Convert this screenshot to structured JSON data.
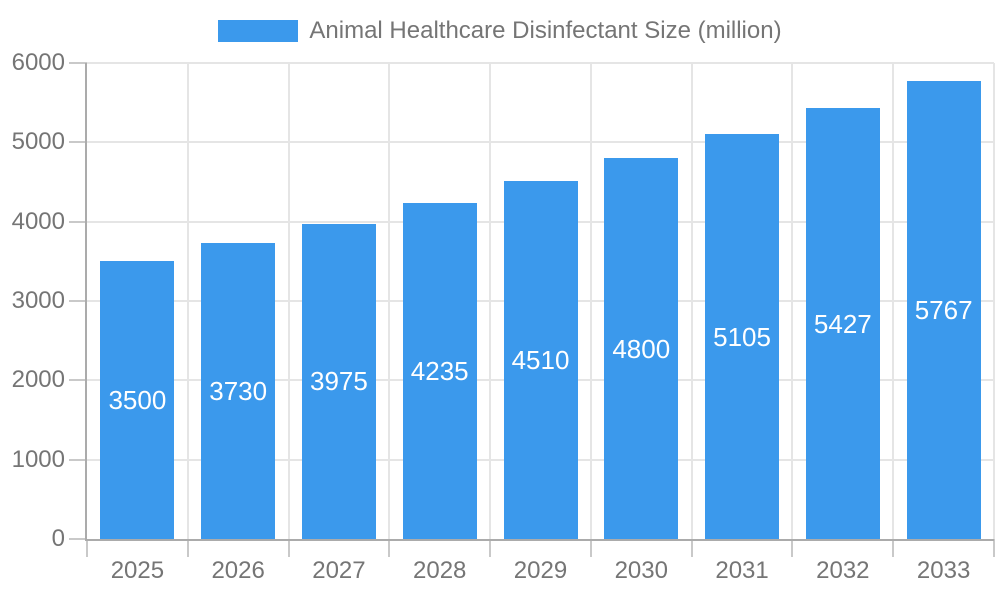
{
  "chart_data": {
    "type": "bar",
    "title": "Animal Healthcare Disinfectant Size (million)",
    "categories": [
      "2025",
      "2026",
      "2027",
      "2028",
      "2029",
      "2030",
      "2031",
      "2032",
      "2033"
    ],
    "values": [
      3500,
      3730,
      3975,
      4235,
      4510,
      4800,
      5105,
      5427,
      5767
    ],
    "xlabel": "",
    "ylabel": "",
    "ylim": [
      0,
      6000
    ],
    "yticks": [
      0,
      1000,
      2000,
      3000,
      4000,
      5000,
      6000
    ],
    "grid": true,
    "legend_position": "top",
    "value_labels": "inside-center",
    "colors": {
      "bar": "#3B99EC",
      "bar_label": "#FFFFFF",
      "axis_text": "#757575",
      "legend_text": "#757575",
      "grid_line": "#E5E5E5",
      "axis_line": "#ABABAB",
      "tick_line": "#C9C9C9",
      "background": "#FFFFFF"
    }
  }
}
